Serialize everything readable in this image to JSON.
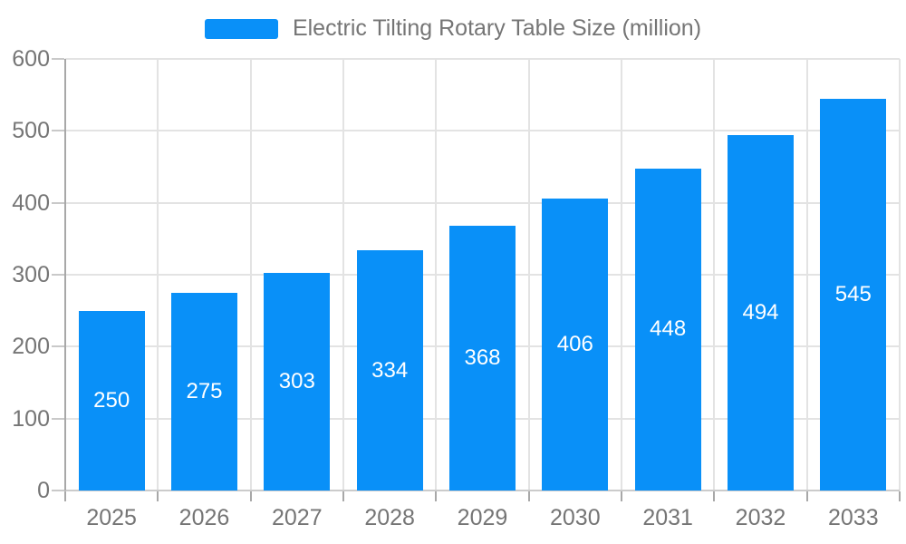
{
  "legend": {
    "label": "Electric Tilting Rotary Table Size (million)"
  },
  "colors": {
    "bar": "#0990f8",
    "grid": "#e3e3e3",
    "y_axis_line": "#a8a8a8",
    "x_axis_line": "#cbcbcb",
    "y_tick": "#c9c9c9",
    "x_tick": "#a8a8a8",
    "axis_text": "#757575",
    "legend_text": "#757575",
    "value_text": "#ffffff",
    "background": "#ffffff"
  },
  "chart_data": {
    "type": "bar",
    "title": "Electric Tilting Rotary Table Size (million)",
    "categories": [
      "2025",
      "2026",
      "2027",
      "2028",
      "2029",
      "2030",
      "2031",
      "2032",
      "2033"
    ],
    "series": [
      {
        "name": "Electric Tilting Rotary Table Size (million)",
        "values": [
          250,
          275,
          303,
          334,
          368,
          406,
          448,
          494,
          545
        ]
      }
    ],
    "value_labels": [
      "250",
      "275",
      "303",
      "334",
      "368",
      "406",
      "448",
      "494",
      "545"
    ],
    "value_label_position": "inside-center",
    "xlabel": "",
    "ylabel": "",
    "ylim": [
      0,
      600
    ],
    "y_ticks": [
      0,
      100,
      200,
      300,
      400,
      500,
      600
    ],
    "grid": true,
    "legend_position": "top-center"
  }
}
